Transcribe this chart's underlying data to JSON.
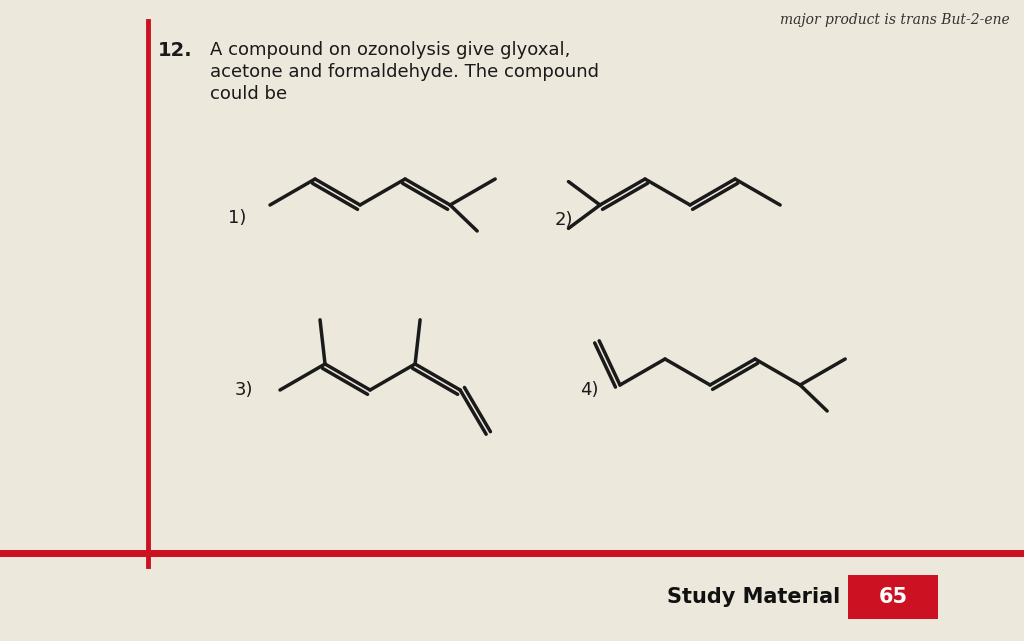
{
  "bg_color": "#ede8dc",
  "text_color": "#1a1a1a",
  "title_top": "major product is trans But-2-ene",
  "question_number": "12.",
  "question_text_line1": "A compound on ozonolysis give glyoxal,",
  "question_text_line2": "acetone and formaldehyde. The compound",
  "question_text_line3": "could be",
  "footer_text": "Study Material",
  "footer_number": "65",
  "footer_bg": "#cc1122",
  "line_width": 2.5,
  "bond_color": "#1a1a1a",
  "red_line_color": "#cc1122",
  "red_vert_color": "#cc1122"
}
